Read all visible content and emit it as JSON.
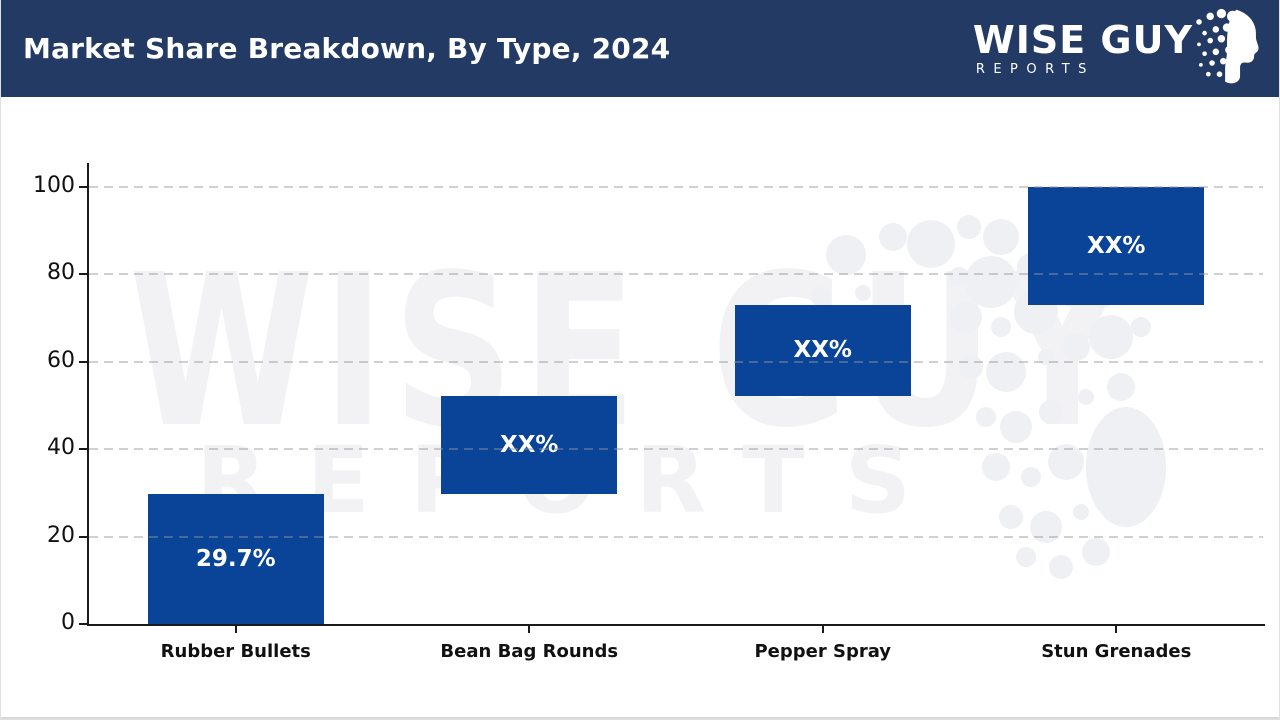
{
  "header": {
    "title": "Market Share Breakdown, By Type, 2024",
    "bg_color": "#223a64",
    "logo": {
      "line1": "WISE GUY",
      "line2": "REPORTS"
    }
  },
  "watermark": {
    "line1": "WISE GUY",
    "line2": "REPORTS"
  },
  "chart_data": {
    "type": "bar",
    "subtype": "waterfall",
    "title": "Market Share Breakdown, By Type, 2024",
    "xlabel": "",
    "ylabel": "",
    "categories": [
      "Rubber Bullets",
      "Bean Bag Rounds",
      "Pepper Spray",
      "Stun Grenades"
    ],
    "segments": [
      {
        "category": "Rubber Bullets",
        "start": 0,
        "end": 29.7,
        "value": 29.7,
        "label": "29.7%"
      },
      {
        "category": "Bean Bag Rounds",
        "start": 29.7,
        "end": 52.2,
        "value": 22.5,
        "label": "XX%"
      },
      {
        "category": "Pepper Spray",
        "start": 52.2,
        "end": 73,
        "value": 20.8,
        "label": "XX%"
      },
      {
        "category": "Stun Grenades",
        "start": 73,
        "end": 100,
        "value": 27,
        "label": "XX%"
      }
    ],
    "yticks": [
      0,
      20,
      40,
      60,
      80,
      100
    ],
    "ylim": [
      0,
      105.5
    ],
    "grid": true,
    "gridline_style": "dashed",
    "bar_color": "#0a4499",
    "bar_label_color": "#ffffff",
    "legend": "none"
  }
}
